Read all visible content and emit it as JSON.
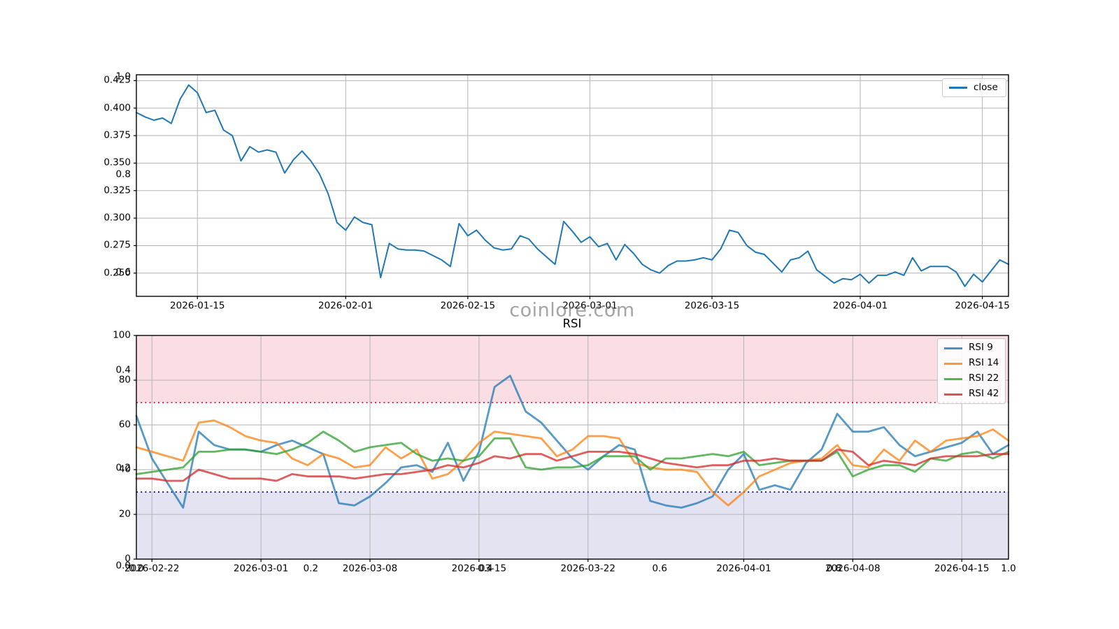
{
  "watermark": "coinlore.com",
  "colors": {
    "close_line": "#1f77b4",
    "rsi9": "#1f77b4",
    "rsi14": "#ff7f0e",
    "rsi22": "#2ca02c",
    "rsi42": "#d62728",
    "overbought_band": "#dc143c",
    "oversold_band": "#00008b",
    "overbought_dotted_line": "#dc143c",
    "oversold_dotted_line": "#00008b",
    "grid": "#b3b3b3",
    "spine": "#000000"
  },
  "chart_data": [
    {
      "id": "price",
      "type": "line",
      "title": "",
      "start_date": "2026-01-08",
      "frequency": "daily",
      "x_total_days": 100,
      "series": [
        {
          "name": "close",
          "color": "#1f77b4",
          "values": [
            0.396,
            0.392,
            0.389,
            0.391,
            0.386,
            0.408,
            0.421,
            0.414,
            0.396,
            0.398,
            0.38,
            0.375,
            0.352,
            0.365,
            0.36,
            0.362,
            0.36,
            0.341,
            0.353,
            0.361,
            0.352,
            0.34,
            0.322,
            0.296,
            0.289,
            0.301,
            0.296,
            0.294,
            0.246,
            0.277,
            0.272,
            0.271,
            0.271,
            0.27,
            0.266,
            0.262,
            0.256,
            0.295,
            0.284,
            0.289,
            0.28,
            0.273,
            0.271,
            0.272,
            0.284,
            0.281,
            0.272,
            0.265,
            0.258,
            0.297,
            0.288,
            0.278,
            0.283,
            0.274,
            0.277,
            0.262,
            0.276,
            0.268,
            0.258,
            0.253,
            0.25,
            0.257,
            0.261,
            0.261,
            0.262,
            0.264,
            0.262,
            0.272,
            0.289,
            0.287,
            0.275,
            0.269,
            0.267,
            0.259,
            0.251,
            0.262,
            0.264,
            0.27,
            0.253,
            0.247,
            0.241,
            0.245,
            0.244,
            0.249,
            0.241,
            0.248,
            0.248,
            0.251,
            0.248,
            0.264,
            0.252,
            0.256,
            0.256,
            0.256,
            0.251,
            0.238,
            0.249,
            0.242,
            0.252,
            0.262,
            0.258
          ]
        }
      ],
      "ylim": [
        0.2289,
        0.4303
      ],
      "yticks": [
        0.25,
        0.275,
        0.3,
        0.325,
        0.35,
        0.375,
        0.4,
        0.425
      ],
      "ytick_labels": [
        "0.250",
        "0.275",
        "0.300",
        "0.325",
        "0.350",
        "0.375",
        "0.400",
        "0.425"
      ],
      "xtick_days": [
        7,
        24,
        38,
        52,
        66,
        83,
        97
      ],
      "xtick_labels": [
        "2026-01-15",
        "2026-02-01",
        "2026-02-15",
        "2026-03-01",
        "2026-03-15",
        "2026-04-01",
        "2026-04-15"
      ],
      "grid": true,
      "legend_position": "upper right",
      "legend_labels": [
        "close"
      ]
    },
    {
      "id": "rsi",
      "type": "line",
      "title": "RSI",
      "start_date": "2026-02-21",
      "frequency": "daily",
      "x_total_days": 56,
      "line_alpha": 0.75,
      "series": [
        {
          "name": "RSI 9",
          "color": "#1f77b4",
          "values": [
            64,
            45,
            34,
            23,
            57,
            51,
            49,
            49,
            48,
            51,
            53,
            50,
            47,
            25,
            24,
            28,
            34,
            41,
            42,
            39,
            52,
            35,
            48,
            77,
            82,
            66,
            61,
            53,
            45,
            40,
            46,
            51,
            49,
            26,
            24,
            23,
            25,
            28,
            40,
            47,
            31,
            33,
            31,
            43,
            49,
            65,
            57,
            57,
            59,
            51,
            46,
            48,
            50,
            52,
            57,
            47,
            51
          ]
        },
        {
          "name": "RSI 14",
          "color": "#ff7f0e",
          "values": [
            50,
            48,
            46,
            44,
            61,
            62,
            59,
            55,
            53,
            52,
            45,
            42,
            47,
            45,
            41,
            42,
            50,
            45,
            49,
            36,
            38,
            44,
            52,
            57,
            56,
            55,
            54,
            46,
            49,
            55,
            55,
            54,
            43,
            41,
            40,
            40,
            39,
            30,
            24,
            30,
            37,
            40,
            43,
            44,
            45,
            51,
            42,
            41,
            49,
            44,
            53,
            48,
            53,
            54,
            55,
            58,
            53
          ]
        },
        {
          "name": "RSI 22",
          "color": "#2ca02c",
          "values": [
            38,
            39,
            40,
            41,
            48,
            48,
            49,
            49,
            48,
            47,
            49,
            52,
            57,
            53,
            48,
            50,
            51,
            52,
            47,
            44,
            45,
            44,
            46,
            54,
            54,
            41,
            40,
            41,
            41,
            42,
            46,
            46,
            46,
            40,
            45,
            45,
            46,
            47,
            46,
            48,
            42,
            43,
            44,
            44,
            44,
            48,
            37,
            40,
            42,
            42,
            39,
            45,
            44,
            47,
            48,
            45,
            48
          ]
        },
        {
          "name": "RSI 42",
          "color": "#d62728",
          "values": [
            36,
            36,
            35,
            35,
            40,
            38,
            36,
            36,
            36,
            35,
            38,
            37,
            37,
            37,
            36,
            37,
            38,
            38,
            39,
            40,
            42,
            41,
            43,
            46,
            45,
            47,
            47,
            44,
            46,
            48,
            48,
            48,
            47,
            45,
            43,
            42,
            41,
            42,
            42,
            44,
            44,
            45,
            44,
            44,
            44,
            49,
            48,
            42,
            44,
            43,
            42,
            45,
            46,
            46,
            46,
            47,
            47
          ]
        }
      ],
      "ylim": [
        0,
        100
      ],
      "yticks": [
        0,
        20,
        40,
        60,
        80,
        100
      ],
      "ytick_labels": [
        "0",
        "20",
        "40",
        "60",
        "80",
        "100"
      ],
      "xtick_days": [
        1,
        8,
        15,
        22,
        29,
        39,
        46,
        53
      ],
      "xtick_labels": [
        "2026-02-22",
        "2026-03-01",
        "2026-03-08",
        "2026-03-15",
        "2026-03-22",
        "2026-04-01",
        "2026-04-08",
        "2026-04-15"
      ],
      "hlines": [
        {
          "y": 70,
          "color": "#dc143c",
          "style": "dotted",
          "name": "overbought-level"
        },
        {
          "y": 30,
          "color": "#00008b",
          "style": "dotted",
          "name": "oversold-level"
        }
      ],
      "bands": [
        {
          "from": 70,
          "to": 100,
          "color": "#dc143c",
          "alpha": 0.14,
          "name": "overbought"
        },
        {
          "from": 0,
          "to": 30,
          "color": "#00008b",
          "alpha": 0.11,
          "name": "oversold"
        }
      ],
      "grid": true,
      "legend_position": "upper right",
      "legend_labels": [
        "RSI 9",
        "RSI 14",
        "RSI 22",
        "RSI 42"
      ]
    }
  ],
  "hidden_axis": {
    "xtick_labels": [
      "0.0",
      "0.2",
      "0.4",
      "0.6",
      "0.8",
      "1.0"
    ],
    "ytick_labels": [
      "0.0",
      "0.2",
      "0.4",
      "0.6",
      "0.8",
      "1.0"
    ]
  }
}
